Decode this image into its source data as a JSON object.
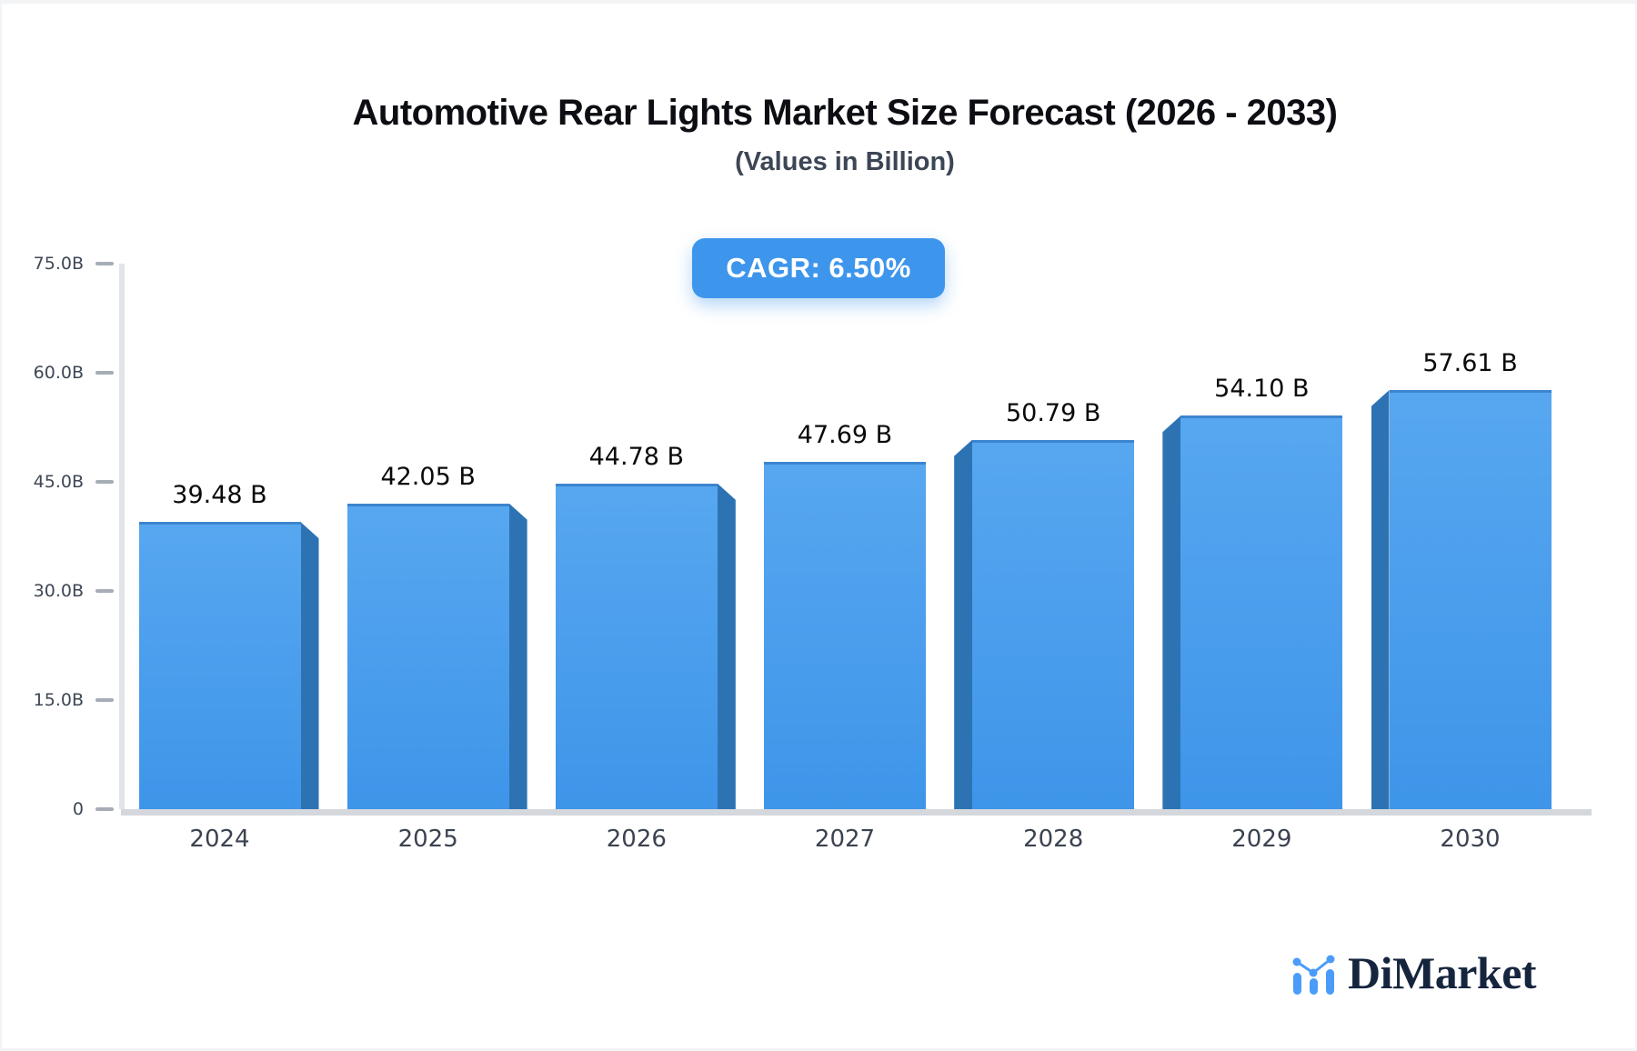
{
  "page": {
    "background": "#f2f4f6",
    "card_background": "#ffffff"
  },
  "header": {
    "title": "Automotive Rear Lights Market Size Forecast (2026 - 2033)",
    "subtitle": "(Values in Billion)",
    "cagr_label": "CAGR: 6.50%"
  },
  "chart_data": {
    "type": "bar",
    "title": "Automotive Rear Lights Market Size Forecast (2026 - 2033)",
    "subtitle": "(Values in Billion)",
    "annotation": "CAGR: 6.50%",
    "categories": [
      "2024",
      "2025",
      "2026",
      "2027",
      "2028",
      "2029",
      "2030"
    ],
    "values": [
      39.48,
      42.05,
      44.78,
      47.69,
      50.79,
      54.1,
      57.61
    ],
    "value_labels": [
      "39.48 B",
      "42.05 B",
      "44.78 B",
      "47.69 B",
      "50.79 B",
      "54.10 B",
      "57.61 B"
    ],
    "xlabel": "",
    "ylabel": "",
    "ylim": [
      0,
      75
    ],
    "y_ticks": [
      {
        "label": "75.0B",
        "value": 75
      },
      {
        "label": "60.0B",
        "value": 60
      },
      {
        "label": "45.0B",
        "value": 45
      },
      {
        "label": "30.0B",
        "value": 30
      },
      {
        "label": "15.0B",
        "value": 15
      },
      {
        "label": "0",
        "value": 0
      }
    ],
    "grid": "off",
    "legend": "none",
    "bar_style": "3d-beveled",
    "colors": {
      "bar_face_top": "#57a7f0",
      "bar_face_bottom": "#3e95e9",
      "bar_top_edge": "#3c85ce",
      "bar_side": "#2d73b4",
      "axis_line": "#e1e4e9",
      "baseline": "#d4d8dd",
      "tick_dash": "#a6adb6",
      "badge_background": "#3e96ec",
      "badge_text": "#ffffff"
    }
  },
  "brand": {
    "name": "DiMarket",
    "icon": "dimarket-logo-icon",
    "text_color": "#16253e",
    "icon_color": "#4a9cf8"
  }
}
